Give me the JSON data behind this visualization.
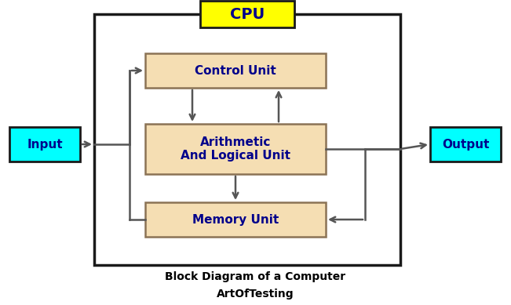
{
  "title1": "Block Diagram of a Computer",
  "title2": "ArtOfTesting",
  "cpu_label": "CPU",
  "cpu_color": "#FFFF00",
  "cpu_text_color": "#00008B",
  "control_label": "Control Unit",
  "alu_label": "Arithmetic\nAnd Logical Unit",
  "memory_label": "Memory Unit",
  "inner_box_color": "#F5DEB3",
  "inner_box_edge": "#8B7355",
  "input_label": "Input",
  "output_label": "Output",
  "io_color": "#00FFFF",
  "io_text_color": "#00008B",
  "outer_box_color": "#FFFFFF",
  "outer_box_edge": "#1A1A1A",
  "arrow_color": "#555555",
  "text_color": "#00008B",
  "title_color": "#000000",
  "bg_color": "#FFFFFF",
  "fig_w": 6.51,
  "fig_h": 3.89,
  "dpi": 100
}
